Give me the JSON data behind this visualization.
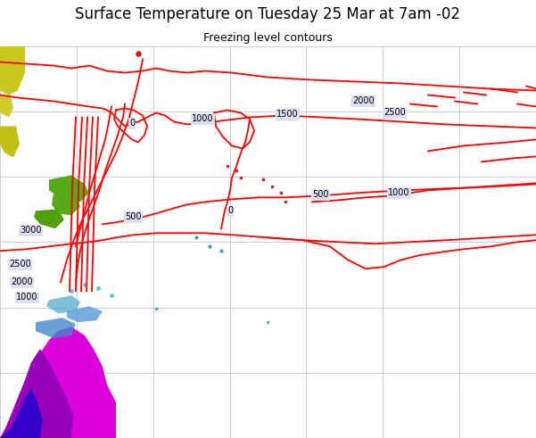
{
  "title": "Surface Temperature on Tuesday 25 Mar at 7am -02",
  "subtitle": "Freezing level contours",
  "title_fontsize": 12,
  "subtitle_fontsize": 9,
  "fig_width": 6.01,
  "fig_height": 4.91,
  "dpi": 100,
  "bg_color": "#dde0f0",
  "grid_color": "#c0c4dc",
  "contour_color": "#ff0000",
  "contour_lw": 1.3,
  "header_bg": "#ffffff",
  "label_bg": "#dde0f0",
  "label_fs": 7
}
